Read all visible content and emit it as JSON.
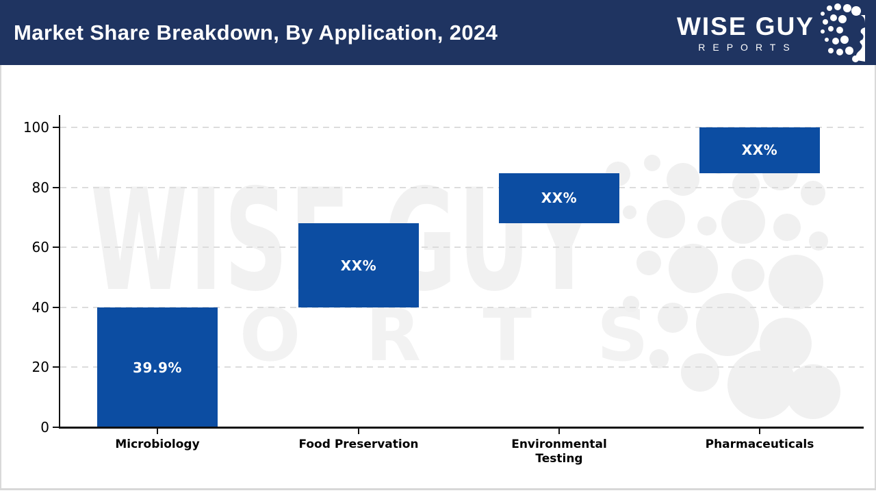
{
  "header": {
    "title": "Market Share Breakdown, By Application, 2024",
    "logo": {
      "line1": "WISE GUY",
      "line2": "REPORTS"
    }
  },
  "watermark": {
    "line1": "WISE GUY",
    "line2": "PORTS"
  },
  "colors": {
    "header_bg": "#1f3461",
    "bar": "#0c4da2",
    "bar_label": "#ffffff",
    "grid": "#dcdcdc",
    "axis": "#111111",
    "watermark": "#f1f1f1"
  },
  "chart_data": {
    "type": "bar",
    "subtype": "waterfall",
    "title": "Market Share Breakdown, By Application, 2024",
    "xlabel": "",
    "ylabel": "",
    "ylim": [
      0,
      100
    ],
    "yticks": [
      0,
      20,
      40,
      60,
      80,
      100
    ],
    "grid": "horizontal-dashed",
    "legend": "none",
    "categories": [
      "Microbiology",
      "Food Preservation",
      "Environmental\nTesting",
      "Pharmaceuticals"
    ],
    "values": [
      39.9,
      28.1,
      16.8,
      15.2
    ],
    "segments": [
      {
        "category": "Microbiology",
        "start": 0,
        "end": 39.9,
        "label": "39.9%"
      },
      {
        "category": "Food Preservation",
        "start": 39.9,
        "end": 68.0,
        "label": "XX%"
      },
      {
        "category": "Environmental Testing",
        "start": 68.0,
        "end": 84.8,
        "label": "XX%"
      },
      {
        "category": "Pharmaceuticals",
        "start": 84.8,
        "end": 100.0,
        "label": "XX%"
      }
    ]
  }
}
